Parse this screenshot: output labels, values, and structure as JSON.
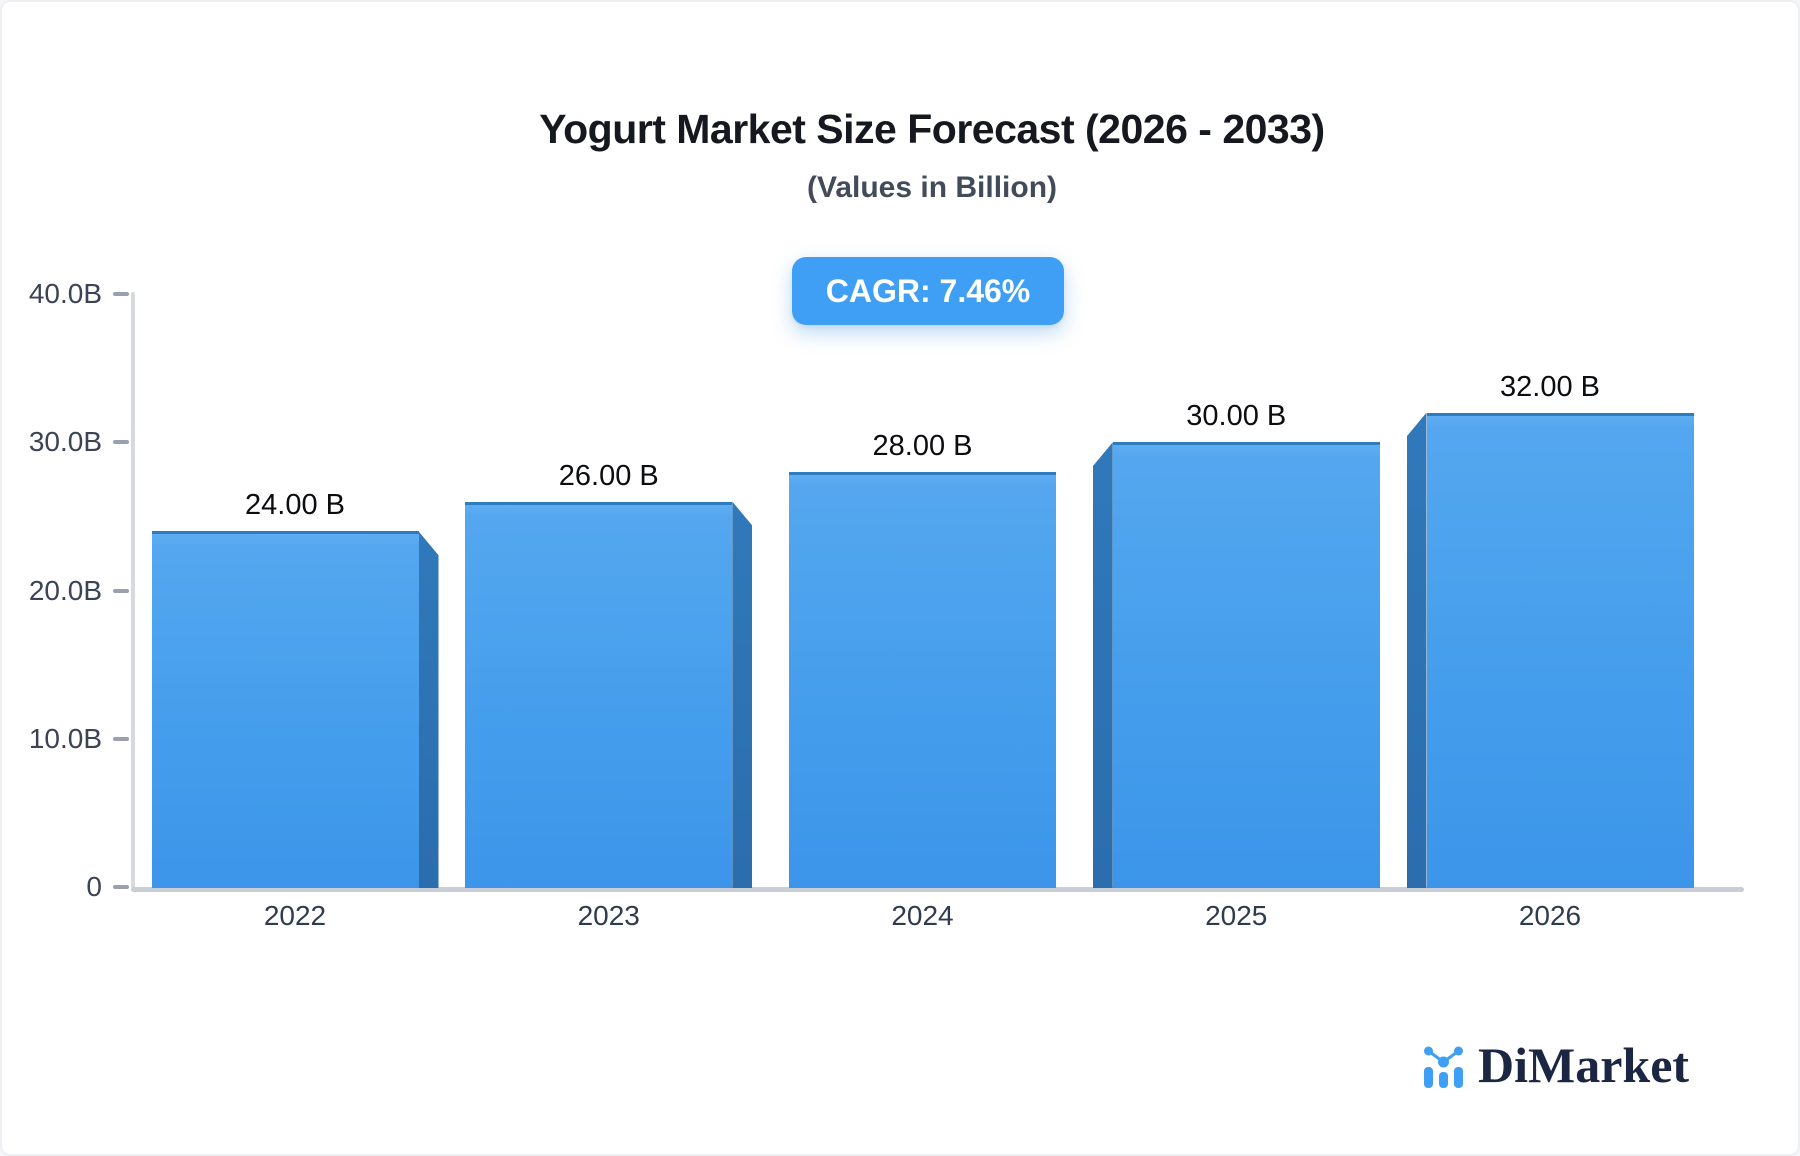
{
  "header": {
    "title": "Yogurt Market Size Forecast (2026 - 2033)",
    "subtitle": "(Values in Billion)",
    "cagr_badge": "CAGR: 7.46%"
  },
  "brand": {
    "name": "DiMarket"
  },
  "colors": {
    "badge": "#3f9ff4",
    "bar_face_top": "#5fadf2",
    "bar_face_bottom": "#3c95e9",
    "bar_side": "#2d72b2",
    "axis_line": "#c9cdd5",
    "logo_icon": "#3f9ff4",
    "logo_text": "#1a2642"
  },
  "chart_data": {
    "type": "bar",
    "title": "Yogurt Market Size Forecast (2026 - 2033)",
    "subtitle": "(Values in Billion)",
    "annotation": "CAGR: 7.46%",
    "categories": [
      "2022",
      "2023",
      "2024",
      "2025",
      "2026"
    ],
    "values": [
      24,
      26,
      28,
      30,
      32
    ],
    "value_labels": [
      "24.00 B",
      "26.00 B",
      "28.00 B",
      "30.00 B",
      "32.00 B"
    ],
    "xlabel": "",
    "ylabel": "",
    "ylim": [
      0,
      40
    ],
    "yticks": [
      0,
      10,
      20,
      30,
      40
    ],
    "ytick_labels": [
      "0",
      "10.0B",
      "20.0B",
      "30.0B",
      "40.0B"
    ],
    "grid": false,
    "legend": false,
    "bar_color": "#3f9ff4",
    "style": "3d-extruded-bars, side faces angled toward center"
  }
}
